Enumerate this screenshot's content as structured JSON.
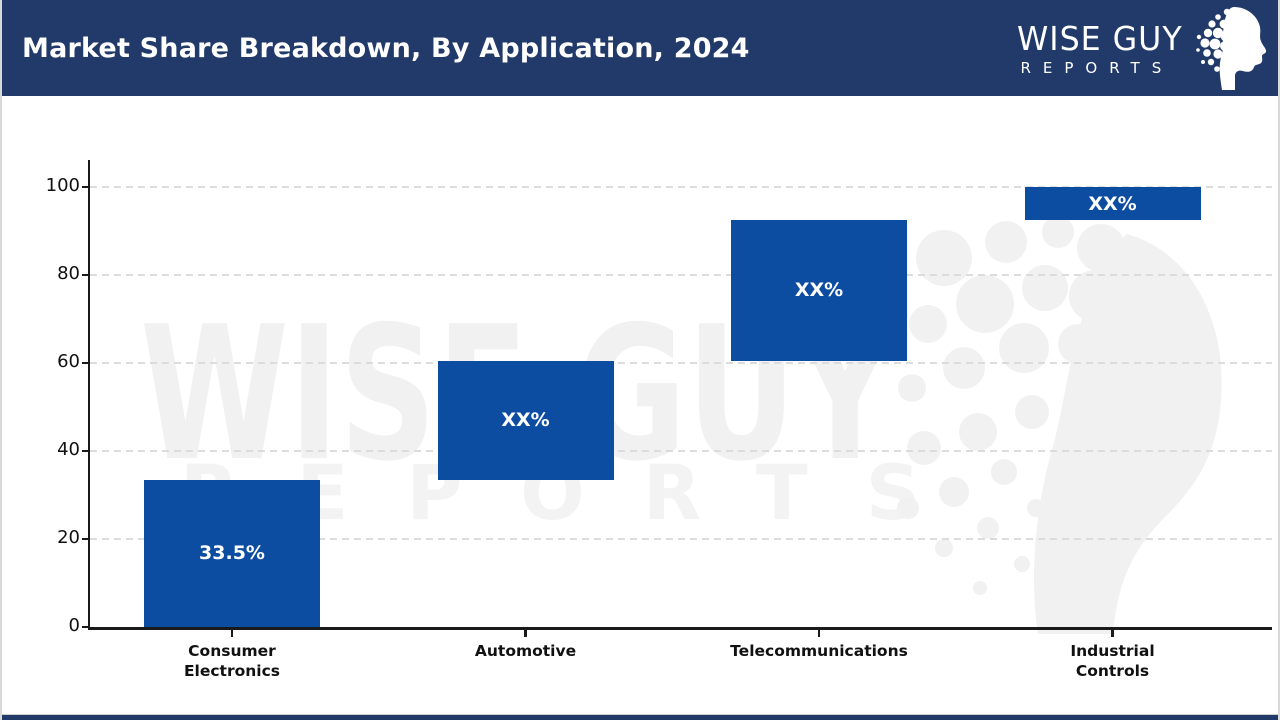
{
  "header": {
    "title": "Market Share Breakdown, By Application, 2024",
    "logo": {
      "line1": "WISE GUY",
      "line2": "REPORTS"
    }
  },
  "watermark": {
    "line1": "WISE GUY",
    "line2": "REPORTS"
  },
  "colors": {
    "header_bg": "#223a69",
    "footer_bg": "#223a69",
    "bar": "#0d4da1",
    "grid": "#dcdcdc",
    "axis": "#1a1a1a",
    "watermark": "#f1f1f1",
    "bar_label_text": "#ffffff"
  },
  "chart_data": {
    "type": "bar",
    "subtype": "waterfall",
    "title": "Market Share Breakdown, By Application, 2024",
    "categories": [
      "Consumer\nElectronics",
      "Automotive",
      "Telecommunications",
      "Industrial\nControls"
    ],
    "segments": [
      {
        "category": "Consumer Electronics",
        "start": 0,
        "end": 33.5,
        "value": 33.5,
        "label": "33.5%"
      },
      {
        "category": "Automotive",
        "start": 33.5,
        "end": 60.5,
        "value": 27.0,
        "label": "XX%"
      },
      {
        "category": "Telecommunications",
        "start": 60.5,
        "end": 92.5,
        "value": 32.0,
        "label": "XX%"
      },
      {
        "category": "Industrial Controls",
        "start": 92.5,
        "end": 100,
        "value": 7.5,
        "label": "XX%"
      }
    ],
    "yticks": [
      0,
      20,
      40,
      60,
      80,
      100
    ],
    "ylim": [
      0,
      106
    ],
    "xlabel": "",
    "ylabel": "",
    "grid": "horizontal-dashed",
    "legend": "none",
    "bar_color": "#0d4da1"
  }
}
